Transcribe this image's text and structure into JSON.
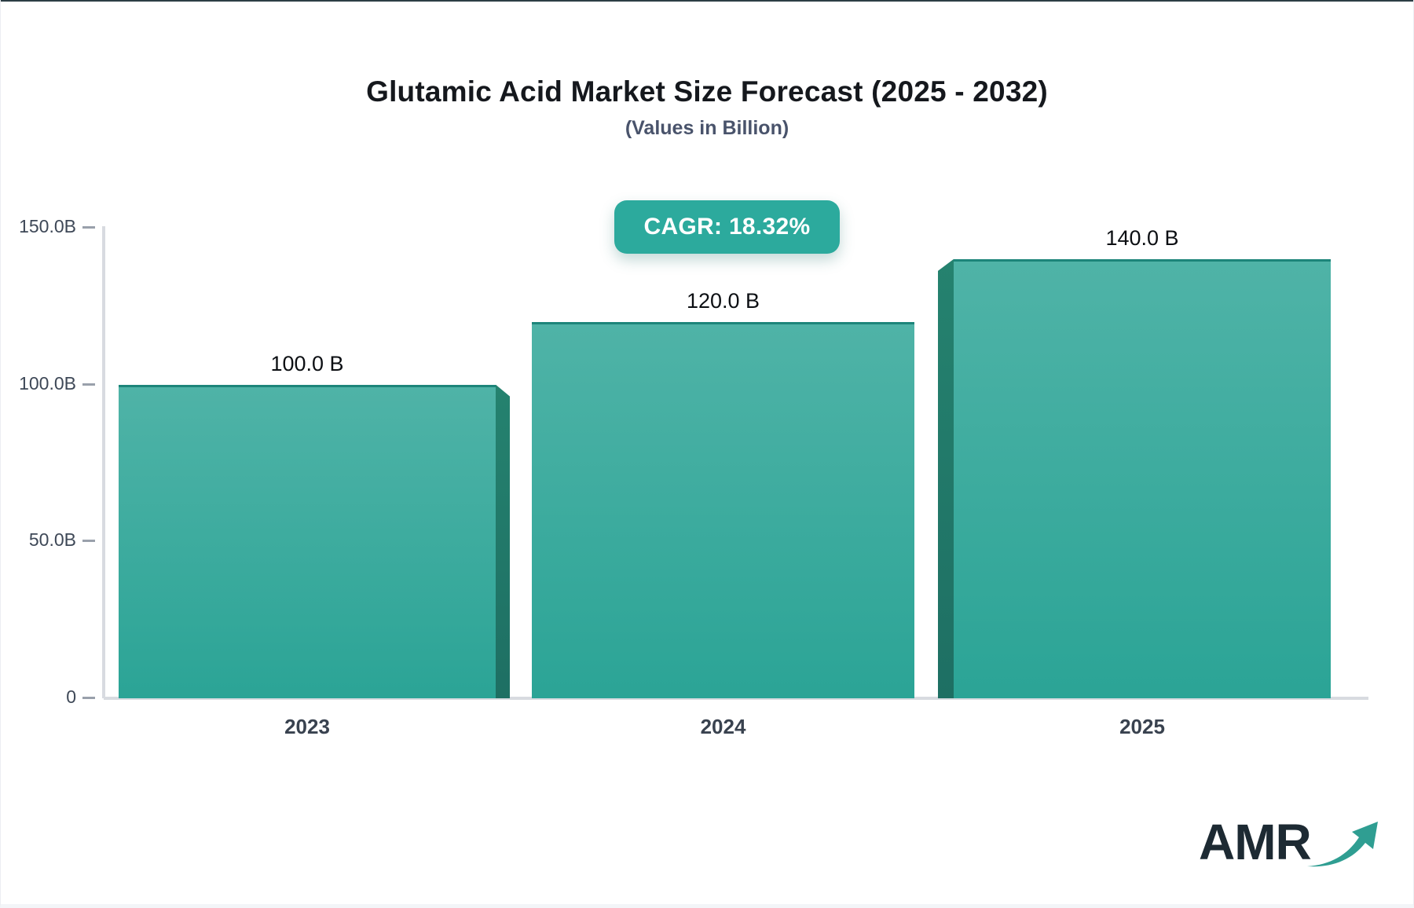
{
  "chart": {
    "title": "Glutamic Acid Market Size Forecast (2025 - 2032)",
    "subtitle": "(Values in Billion)",
    "cagr_label": "CAGR: 18.32%"
  },
  "chart_data": {
    "type": "bar",
    "categories": [
      "2023",
      "2024",
      "2025"
    ],
    "values": [
      100.0,
      120.0,
      140.0
    ],
    "value_labels": [
      "100.0 B",
      "120.0 B",
      "140.0 B"
    ],
    "title": "Glutamic Acid Market Size Forecast (2025 - 2032)",
    "subtitle": "(Values in Billion)",
    "xlabel": "",
    "ylabel": "",
    "unit": "Billion",
    "ylim": [
      0,
      150
    ],
    "yticks": [
      {
        "value": 0,
        "label": "0"
      },
      {
        "value": 50,
        "label": "50.0B"
      },
      {
        "value": 100,
        "label": "100.0B"
      },
      {
        "value": 150,
        "label": "150.0B"
      }
    ],
    "grid": false,
    "legend": false,
    "bar_color_top": "#4fb3a7",
    "bar_color_bottom": "#2ba496",
    "bar_top_edge_color": "#1d857a",
    "bar_side_color_top": "#25826f",
    "bar_side_color_bottom": "#1e6f63"
  },
  "colors": {
    "accent_teal": "#2caa9d",
    "axis_line": "#d8dbe0",
    "axis_text": "#3e4857",
    "title_text": "#15181d",
    "subtitle_text": "#49536b"
  },
  "logo": {
    "text": "AMR",
    "arrow_color": "#2f9e92"
  }
}
